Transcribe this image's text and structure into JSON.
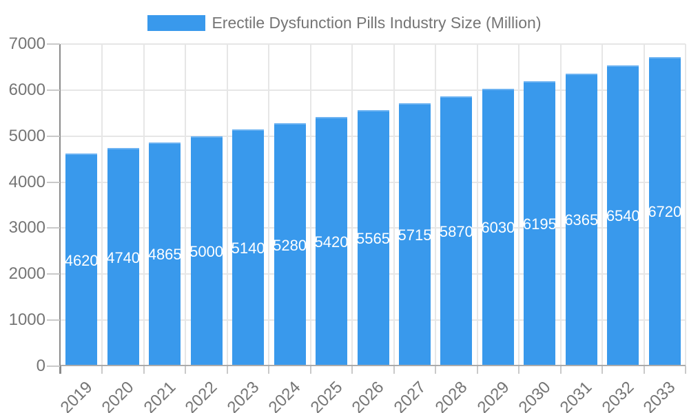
{
  "chart_data": {
    "type": "bar",
    "title": "Erectile Dysfunction Pills Industry Size (Million)",
    "categories": [
      "2019",
      "2020",
      "2021",
      "2022",
      "2023",
      "2024",
      "2025",
      "2026",
      "2027",
      "2028",
      "2029",
      "2030",
      "2031",
      "2032",
      "2033"
    ],
    "values": [
      4620,
      4740,
      4865,
      5000,
      5140,
      5280,
      5420,
      5565,
      5715,
      5870,
      6030,
      6195,
      6365,
      6540,
      6720
    ],
    "series_name": "Erectile Dysfunction Pills Industry Size (Million)",
    "xlabel": "",
    "ylabel": "",
    "ylim": [
      0,
      7000
    ],
    "yticks": [
      0,
      1000,
      2000,
      3000,
      4000,
      5000,
      6000,
      7000
    ],
    "grid": "both",
    "legend_position": "top-center",
    "value_labels": "inside-center",
    "x_label_rotation": -45
  },
  "colors": {
    "bar_fill": "#3999ec",
    "bar_edge": "#6db3f2",
    "grid_line": "#e6e6e6",
    "axis_line": "#8a8a8a",
    "baseline": "#ababab",
    "tick": "#c9c9c9",
    "axis_text": "#757575",
    "value_text": "#ffffff",
    "background": "#ffffff"
  }
}
